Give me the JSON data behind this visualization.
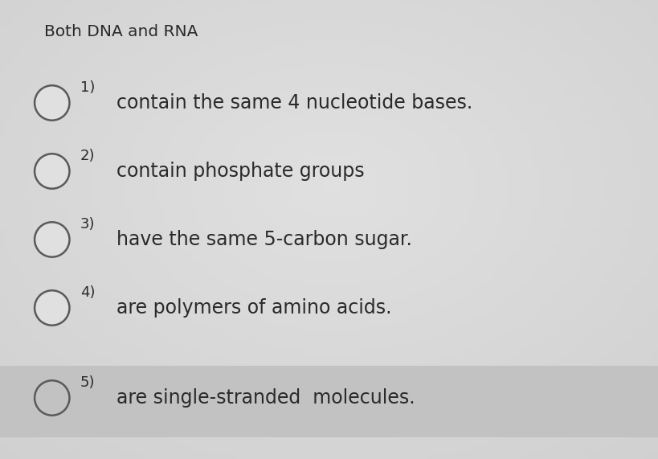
{
  "title": "Both DNA and RNA",
  "background_color": "#d4d4d4",
  "last_row_bg_color": "#c2c2c2",
  "options": [
    {
      "num": "1)",
      "text": "contain the same 4 nucleotide bases.",
      "selected": false
    },
    {
      "num": "2)",
      "text": "contain phosphate groups",
      "selected": false
    },
    {
      "num": "3)",
      "text": "have the same 5-carbon sugar.",
      "selected": false
    },
    {
      "num": "4)",
      "text": "are polymers of amino acids.",
      "selected": false
    },
    {
      "num": "5)",
      "text": "are single-stranded  molecules.",
      "selected": true
    }
  ],
  "title_fontsize": 14.5,
  "option_fontsize": 17,
  "num_fontsize": 13,
  "title_color": "#2a2a2a",
  "option_text_color": "#2a2a2a",
  "circle_edge_color": "#5a5a5a",
  "circle_linewidth": 1.8
}
